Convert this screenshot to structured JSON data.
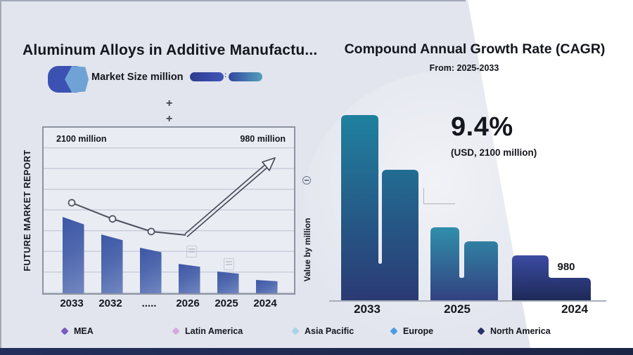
{
  "header": {
    "left_title": "Aluminum Alloys in Additive Manufactu...",
    "market_size_label": "Market Size million",
    "pill_separator": ":",
    "plus_mark": "+"
  },
  "right_panel": {
    "title": "Compound Annual Growth Rate (CAGR)",
    "subtitle": "From: 2025-2033",
    "cagr_value": "9.4%",
    "cagr_note": "(USD, 2100 million)",
    "bar_callout": "980"
  },
  "side_labels": {
    "left_watermark": "FUTURE MARKET REPORT",
    "value_axis": "Value by million"
  },
  "left_chart_notes": {
    "top_left": "2100 million",
    "top_right": "980 million"
  },
  "footer_legend": {
    "items": [
      {
        "label": "MEA",
        "color": "#7a5bc0"
      },
      {
        "label": "Latin America",
        "color": "#d4a9dd"
      },
      {
        "label": "Asia Pacific",
        "color": "#a6d3e6"
      },
      {
        "label": "Europe",
        "color": "#4a9ce2"
      },
      {
        "label": "North America",
        "color": "#283268"
      }
    ]
  },
  "colors": {
    "panel": "#e2e5ee",
    "left_bar_top": "#3e57a6",
    "left_bar_bottom": "#7287c1",
    "right_grad_2033": [
      "#1f819f",
      "#2b3a74"
    ],
    "right_grad_2025": [
      "#2f8fab",
      "#334180"
    ],
    "right_grad_2024": [
      "#3b4ba2",
      "#1e2957"
    ],
    "bottom_bar": "#1f2a52"
  },
  "chart_data": [
    {
      "type": "bar",
      "title": "Aluminum Alloys in Additive Manufactu... — Market Size million",
      "categories": [
        "2033",
        "2032",
        ".....",
        "2026",
        "2025",
        "2024"
      ],
      "series": [
        {
          "name": "Market Size million",
          "values_relative": [
            1.0,
            0.77,
            0.6,
            0.385,
            0.28,
            0.175
          ],
          "values_million_est": [
            2100,
            1920,
            1600,
            1170,
            1070,
            980
          ]
        }
      ],
      "annotations": [
        "2100 million",
        "980 million"
      ],
      "ylabel": "Value by million",
      "grid": true,
      "trendline": "markers descending over first bars, then arrow rising to top-right"
    },
    {
      "type": "bar",
      "title": "Compound Annual Growth Rate (CAGR)",
      "subtitle": "From: 2025-2033",
      "cagr_percent": 9.4,
      "usd_note": "(USD, 2100 million)",
      "categories": [
        "2033",
        "2025",
        "2024"
      ],
      "series": [
        {
          "name": "upper",
          "values_relative": [
            1.0,
            0.396,
            0.245
          ]
        },
        {
          "name": "lower",
          "values_relative": [
            0.705,
            0.321,
            0.125
          ]
        }
      ],
      "labeled_value": {
        "category": "2024",
        "value": 980
      },
      "legend_entries": [
        "MEA",
        "Latin America",
        "Asia Pacific",
        "Europe",
        "North America"
      ]
    }
  ]
}
